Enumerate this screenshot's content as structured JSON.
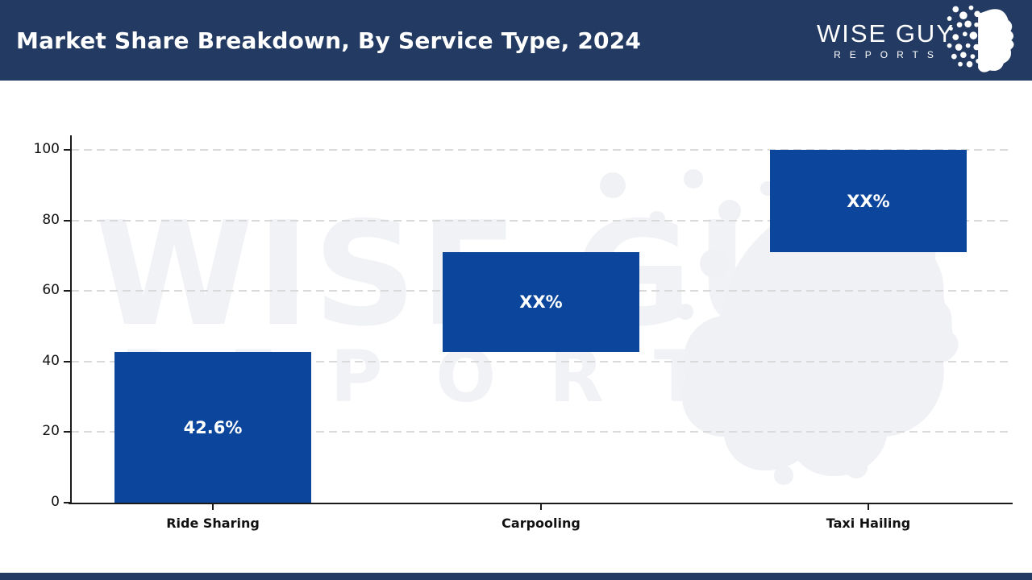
{
  "header": {
    "title": "Market Share Breakdown, By Service Type, 2024",
    "logo": {
      "line1": "WISE GUY",
      "line2": "REPORTS"
    }
  },
  "watermark": {
    "line1": "WISE GUY",
    "line2": "REPORTS"
  },
  "colors": {
    "navy": "#233a63",
    "bar_blue": "#0c459c",
    "grid_gray": "#dadada",
    "axis_black": "#1a1a1a",
    "watermark_gray": "#f1f2f5",
    "label_white": "#ffffff"
  },
  "chart_data": {
    "type": "bar",
    "subtype": "waterfall",
    "title": "Market Share Breakdown, By Service Type, 2024",
    "categories": [
      "Ride Sharing",
      "Carpooling",
      "Taxi Hailing"
    ],
    "bars": [
      {
        "category": "Ride Sharing",
        "start": 0,
        "end": 42.6,
        "label": "42.6%"
      },
      {
        "category": "Carpooling",
        "start": 42.6,
        "end": 71,
        "label": "XX%"
      },
      {
        "category": "Taxi Hailing",
        "start": 71,
        "end": 100,
        "label": "XX%"
      }
    ],
    "ylim": [
      0,
      100
    ],
    "yticks": [
      0,
      20,
      40,
      60,
      80,
      100
    ],
    "grid": "horizontal dashed",
    "legend": "none",
    "bar_color": "#0c459c",
    "value_label_color": "#ffffff"
  }
}
